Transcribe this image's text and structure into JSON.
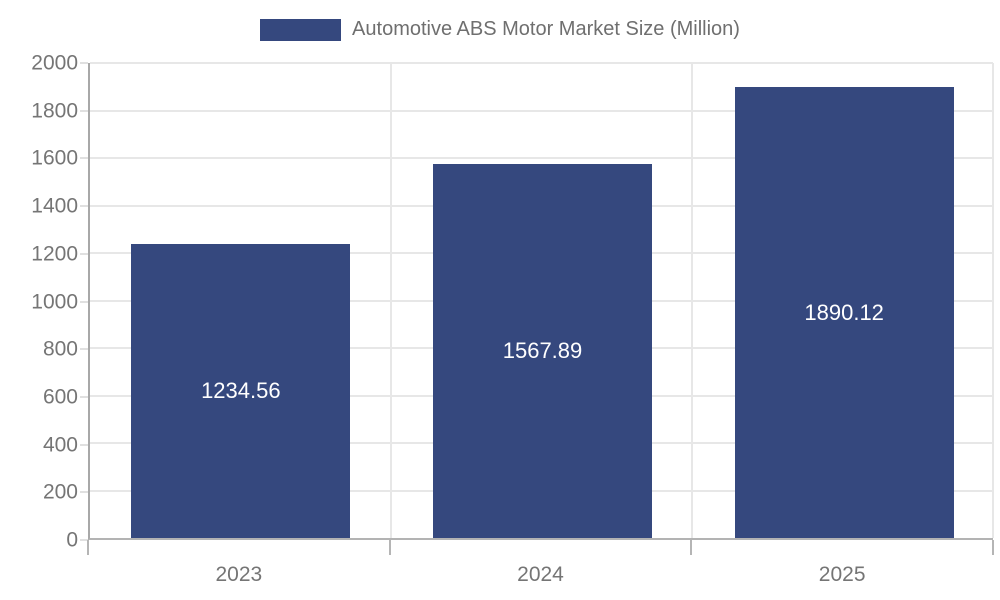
{
  "chart_data": {
    "type": "bar",
    "title": "Automotive ABS Motor Market Size (Million)",
    "categories": [
      "2023",
      "2024",
      "2025"
    ],
    "values": [
      1234.56,
      1567.89,
      1890.12
    ],
    "value_labels": [
      "1234.56",
      "1567.89",
      "1890.12"
    ],
    "xlabel": "",
    "ylabel": "",
    "ylim": [
      0,
      2000
    ],
    "ytick_step": 200,
    "yticks": [
      0,
      200,
      400,
      600,
      800,
      1000,
      1200,
      1400,
      1600,
      1800,
      2000
    ],
    "grid": "on",
    "legend_position": "top-center",
    "colors": {
      "bar": "#35487e",
      "grid": "#e7e7e7",
      "axis": "#a8a8a8",
      "tick_text": "#757575",
      "legend_text": "#6f6f6f",
      "value_text": "#ffffff",
      "background": "#ffffff"
    }
  }
}
